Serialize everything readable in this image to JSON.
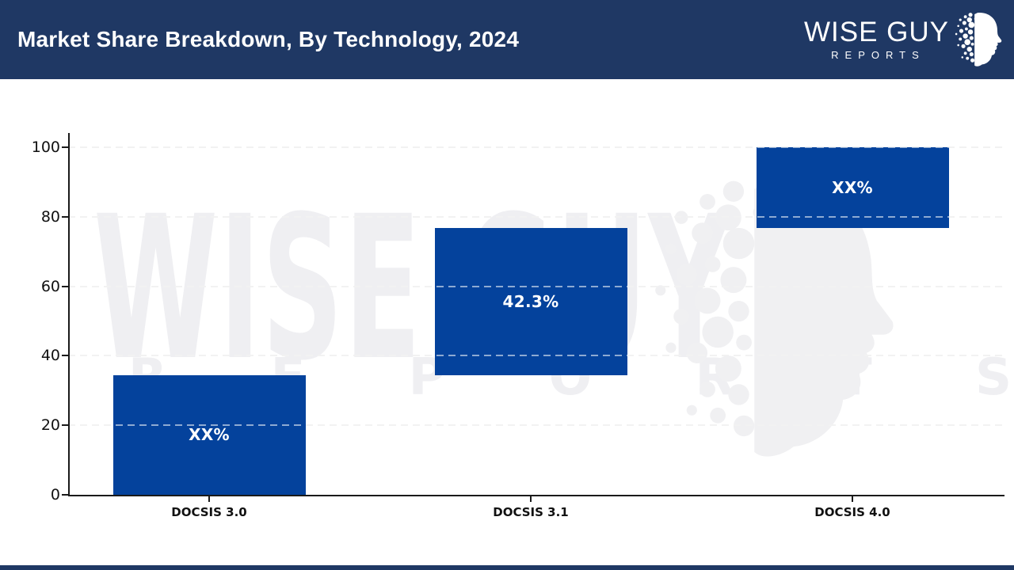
{
  "header": {
    "title": "Market Share Breakdown, By Technology, 2024",
    "logo": {
      "line1": "WISE GUY",
      "line2": "REPORTS"
    }
  },
  "watermark": {
    "line1": "WISE GUY",
    "line2": "R E P O R T S"
  },
  "colors": {
    "header_bg": "#1f3864",
    "footer_bg": "#1f3864",
    "bar": "#04429c",
    "bar_label": "#ffffff",
    "grid": "#e2e2e2",
    "axis": "#1a1a1a",
    "watermark": "#f0f0f2"
  },
  "chart_data": {
    "type": "bar",
    "subtype": "waterfall-floating-bars",
    "title": "Market Share Breakdown, By Technology, 2024",
    "categories": [
      "DOCSIS 3.0",
      "DOCSIS 3.1",
      "DOCSIS 4.0"
    ],
    "segments": [
      {
        "category": "DOCSIS 3.0",
        "start": 0,
        "end": 34.5,
        "value": 34.5,
        "label": "XX%"
      },
      {
        "category": "DOCSIS 3.1",
        "start": 34.5,
        "end": 76.8,
        "value": 42.3,
        "label": "42.3%"
      },
      {
        "category": "DOCSIS 4.0",
        "start": 76.8,
        "end": 100,
        "value": 23.2,
        "label": "XX%"
      }
    ],
    "xlabel": "",
    "ylabel": "",
    "ylim": [
      0,
      100
    ],
    "yticks": [
      0,
      20,
      40,
      60,
      80,
      100
    ],
    "grid": "horizontal dashed, drawn above bars",
    "legend": "none"
  }
}
